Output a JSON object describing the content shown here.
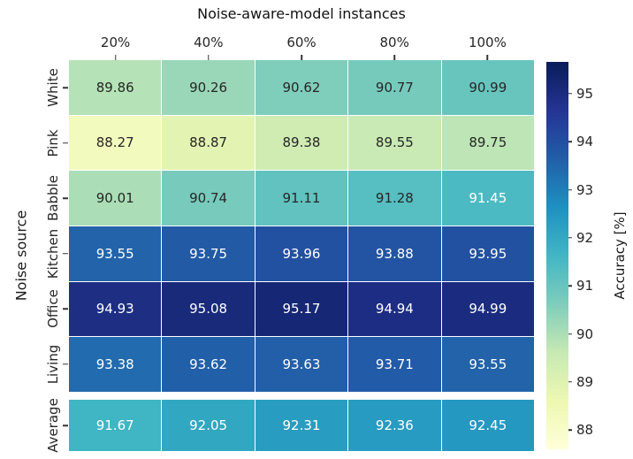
{
  "chart_data": {
    "type": "heatmap",
    "title": "Noise-aware-model instances",
    "ylabel": "Noise source",
    "columns": [
      "20%",
      "40%",
      "60%",
      "80%",
      "100%"
    ],
    "series": [
      {
        "name": "White",
        "values": [
          89.86,
          90.26,
          90.62,
          90.77,
          90.99
        ]
      },
      {
        "name": "Pink",
        "values": [
          88.27,
          88.87,
          89.38,
          89.55,
          89.75
        ]
      },
      {
        "name": "Babble",
        "values": [
          90.01,
          90.74,
          91.11,
          91.28,
          91.45
        ]
      },
      {
        "name": "Kitchen",
        "values": [
          93.55,
          93.75,
          93.96,
          93.88,
          93.95
        ]
      },
      {
        "name": "Office",
        "values": [
          94.93,
          95.08,
          95.17,
          94.94,
          94.99
        ]
      },
      {
        "name": "Living",
        "values": [
          93.38,
          93.62,
          93.63,
          93.71,
          93.55
        ]
      }
    ],
    "average_row": {
      "label": "Average",
      "values": [
        91.67,
        92.05,
        92.31,
        92.36,
        92.45
      ]
    },
    "colorbar": {
      "label": "Accuracy [%]",
      "ticks": [
        95,
        94,
        93,
        92,
        91,
        90,
        89,
        88
      ],
      "vmin": 87.6,
      "vmax": 95.66,
      "colormap": "YlGnBu",
      "stops": [
        "#ffffd9",
        "#edf8b1",
        "#c7e9b4",
        "#7fcdbb",
        "#41b6c4",
        "#1d91c0",
        "#225ea8",
        "#253494",
        "#081d58"
      ]
    },
    "annot_colors": {
      "dark": "#262626",
      "light": "#ffffff"
    },
    "value_decimals": 2,
    "grid_on": false,
    "legend_position": "right-colorbar"
  }
}
